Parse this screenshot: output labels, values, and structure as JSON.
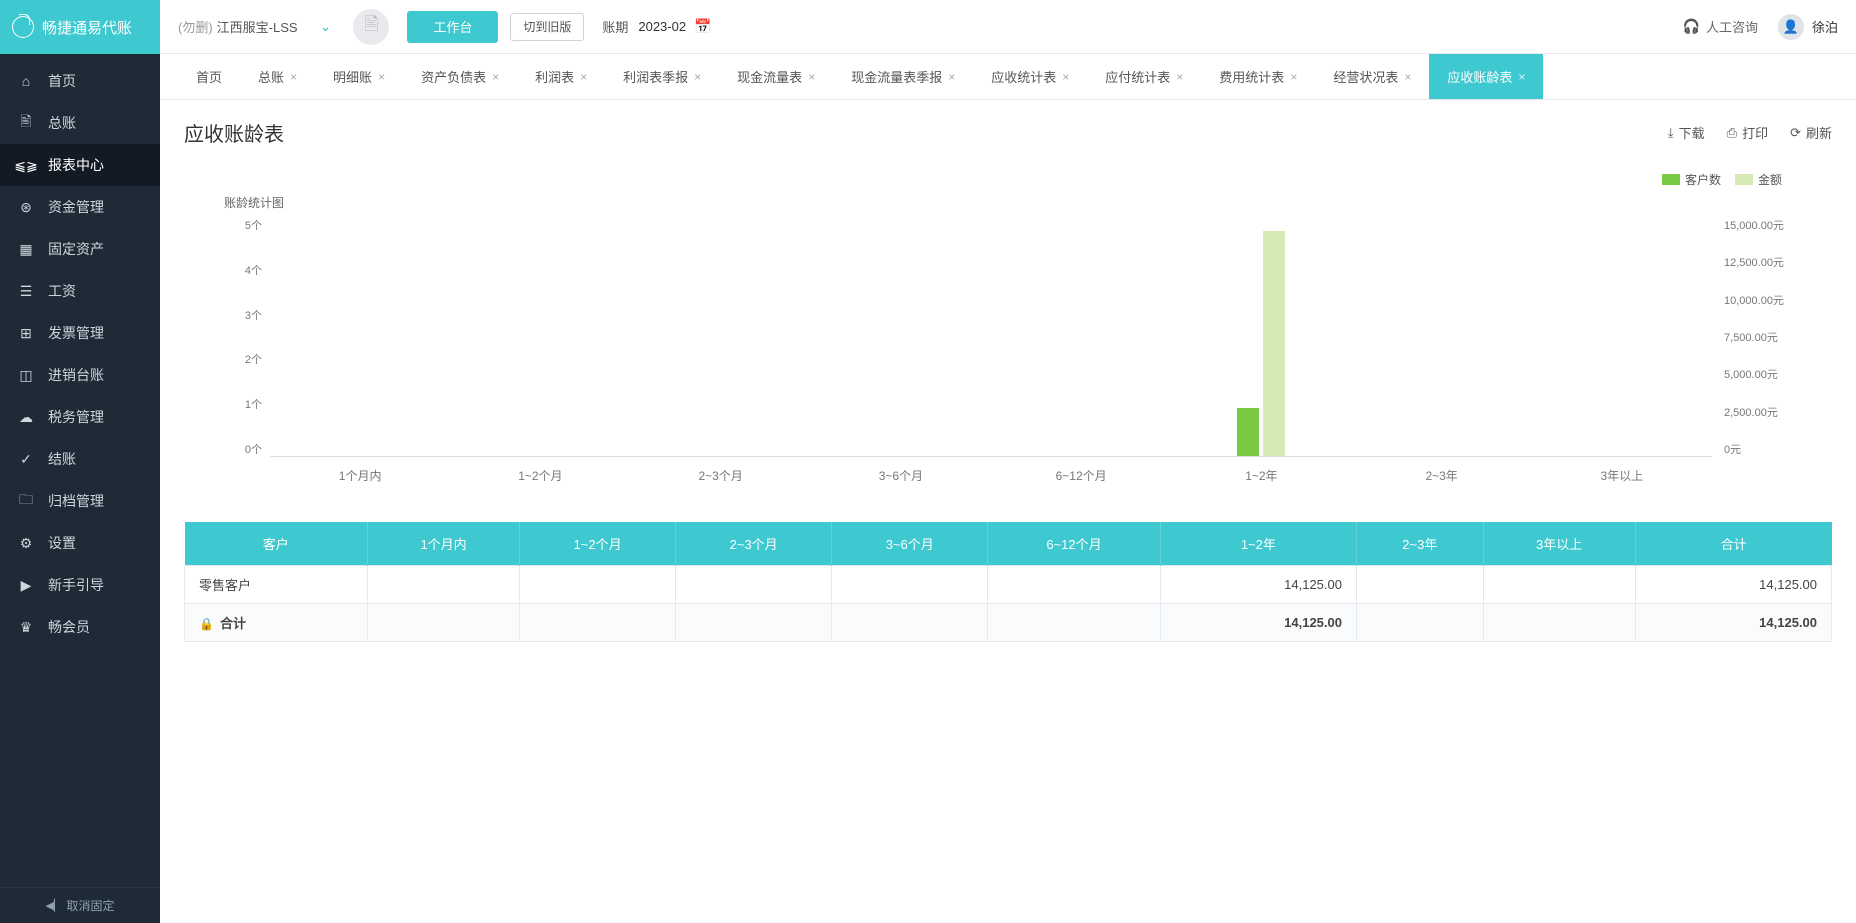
{
  "brand": "畅捷通易代账",
  "sidebar": {
    "items": [
      {
        "label": "首页",
        "icon": "⌂"
      },
      {
        "label": "总账",
        "icon": "🖹"
      },
      {
        "label": "报表中心",
        "icon": "⫹⫺",
        "active": true
      },
      {
        "label": "资金管理",
        "icon": "⊛"
      },
      {
        "label": "固定资产",
        "icon": "▦"
      },
      {
        "label": "工资",
        "icon": "☰"
      },
      {
        "label": "发票管理",
        "icon": "⊞"
      },
      {
        "label": "进销台账",
        "icon": "◫"
      },
      {
        "label": "税务管理",
        "icon": "☁"
      },
      {
        "label": "结账",
        "icon": "✓"
      },
      {
        "label": "归档管理",
        "icon": "🗀"
      },
      {
        "label": "设置",
        "icon": "⚙"
      },
      {
        "label": "新手引导",
        "icon": "▶"
      },
      {
        "label": "畅会员",
        "icon": "♛"
      }
    ],
    "footer": "取消固定"
  },
  "header": {
    "company_prefix": "(勿删)",
    "company_name": "江西服宝-LSS",
    "btn_workspace": "工作台",
    "btn_old_version": "切到旧版",
    "period_label": "账期",
    "period_value": "2023-02",
    "support": "人工咨询",
    "user": "徐泊"
  },
  "tabs": [
    {
      "label": "首页",
      "closable": false
    },
    {
      "label": "总账",
      "closable": true
    },
    {
      "label": "明细账",
      "closable": true
    },
    {
      "label": "资产负债表",
      "closable": true
    },
    {
      "label": "利润表",
      "closable": true
    },
    {
      "label": "利润表季报",
      "closable": true
    },
    {
      "label": "现金流量表",
      "closable": true
    },
    {
      "label": "现金流量表季报",
      "closable": true
    },
    {
      "label": "应收统计表",
      "closable": true
    },
    {
      "label": "应付统计表",
      "closable": true
    },
    {
      "label": "费用统计表",
      "closable": true
    },
    {
      "label": "经营状况表",
      "closable": true
    },
    {
      "label": "应收账龄表",
      "closable": true,
      "active": true
    }
  ],
  "page": {
    "title": "应收账龄表",
    "actions": [
      {
        "label": "下载",
        "icon": "⤓"
      },
      {
        "label": "打印",
        "icon": "⎙"
      },
      {
        "label": "刷新",
        "icon": "⟳"
      }
    ]
  },
  "chart": {
    "title": "账龄统计图",
    "legend": [
      {
        "label": "客户数",
        "color": "#7ac943"
      },
      {
        "label": "金额",
        "color": "#d5eab5"
      }
    ],
    "categories": [
      "1个月内",
      "1~2个月",
      "2~3个月",
      "3~6个月",
      "6~12个月",
      "1~2年",
      "2~3年",
      "3年以上"
    ],
    "left_axis": {
      "max": 5,
      "suffix": "个",
      "ticks": [
        "5个",
        "4个",
        "3个",
        "2个",
        "1个",
        "0个"
      ]
    },
    "right_axis": {
      "max": 15000,
      "suffix": "元",
      "ticks": [
        "15,000.00元",
        "12,500.00元",
        "10,000.00元",
        "7,500.00元",
        "5,000.00元",
        "2,500.00元",
        "0元"
      ]
    },
    "series": {
      "customers": [
        0,
        0,
        0,
        0,
        0,
        1,
        0,
        0
      ],
      "amount": [
        0,
        0,
        0,
        0,
        0,
        14125,
        0,
        0
      ]
    },
    "colors": {
      "customers": "#7ac943",
      "amount": "#d5eab5",
      "axis": "#dddddd",
      "text": "#777777"
    }
  },
  "table": {
    "columns": [
      "客户",
      "1个月内",
      "1~2个月",
      "2~3个月",
      "3~6个月",
      "6~12个月",
      "1~2年",
      "2~3年",
      "3年以上",
      "合计"
    ],
    "rows": [
      {
        "label": "零售客户",
        "cells": [
          "",
          "",
          "",
          "",
          "",
          "14,125.00",
          "",
          "",
          "14,125.00"
        ]
      }
    ],
    "total": {
      "label": "合计",
      "cells": [
        "",
        "",
        "",
        "",
        "",
        "14,125.00",
        "",
        "",
        "14,125.00"
      ]
    }
  }
}
